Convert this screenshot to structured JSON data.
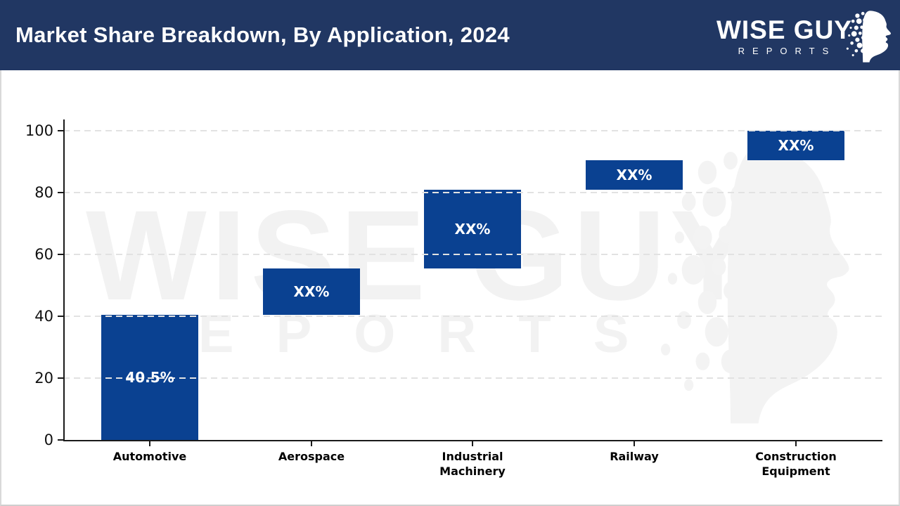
{
  "header": {
    "title": "Market Share Breakdown, By Application, 2024",
    "logo": {
      "line1": "WISE GUY",
      "line2": "REPORTS"
    }
  },
  "watermark": {
    "line1": "WISE GUY",
    "line2": "REPORTS"
  },
  "chart_data": {
    "type": "bar",
    "subtype": "waterfall",
    "title": "Market Share Breakdown, By Application, 2024",
    "categories": [
      "Automotive",
      "Aerospace",
      "Industrial Machinery",
      "Railway",
      "Construction Equipment"
    ],
    "segments": [
      {
        "category": "Automotive",
        "start": 0,
        "end": 40.5,
        "size": 40.5,
        "label": "40.5%"
      },
      {
        "category": "Aerospace",
        "start": 40.5,
        "end": 55.5,
        "size": 15,
        "label": "XX%"
      },
      {
        "category": "Industrial Machinery",
        "start": 55.5,
        "end": 81,
        "size": 25.5,
        "label": "XX%"
      },
      {
        "category": "Railway",
        "start": 81,
        "end": 90.5,
        "size": 9.5,
        "label": "XX%"
      },
      {
        "category": "Construction Equipment",
        "start": 90.5,
        "end": 100,
        "size": 9.5,
        "label": "XX%"
      }
    ],
    "yticks": [
      0,
      20,
      40,
      60,
      80,
      100
    ],
    "ylim": [
      0,
      105
    ],
    "xlabel": "",
    "ylabel": "",
    "grid": "horizontal-dashed",
    "legend": "none",
    "bar_color": "#0a4191",
    "bar_label_color": "#ffffff",
    "axis_color": "#1a1a1a",
    "header_color": "#213763"
  }
}
